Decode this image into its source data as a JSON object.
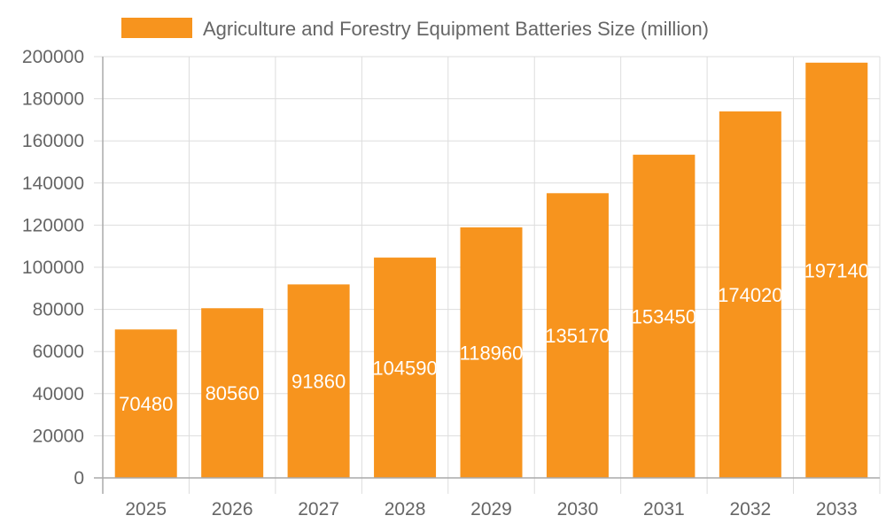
{
  "chart_data": {
    "type": "bar",
    "categories": [
      "2025",
      "2026",
      "2027",
      "2028",
      "2029",
      "2030",
      "2031",
      "2032",
      "2033"
    ],
    "series": [
      {
        "name": "Agriculture and Forestry Equipment Batteries Size (million)",
        "values": [
          70480,
          80560,
          91860,
          104590,
          118960,
          135170,
          153450,
          174020,
          197140
        ],
        "color": "#F7941E"
      }
    ],
    "ylim": [
      0,
      200000
    ],
    "yticks": [
      "0",
      "20000",
      "40000",
      "60000",
      "80000",
      "100000",
      "120000",
      "140000",
      "160000",
      "180000",
      "200000"
    ],
    "grid": true,
    "legend_position": "top",
    "data_labels": true
  }
}
